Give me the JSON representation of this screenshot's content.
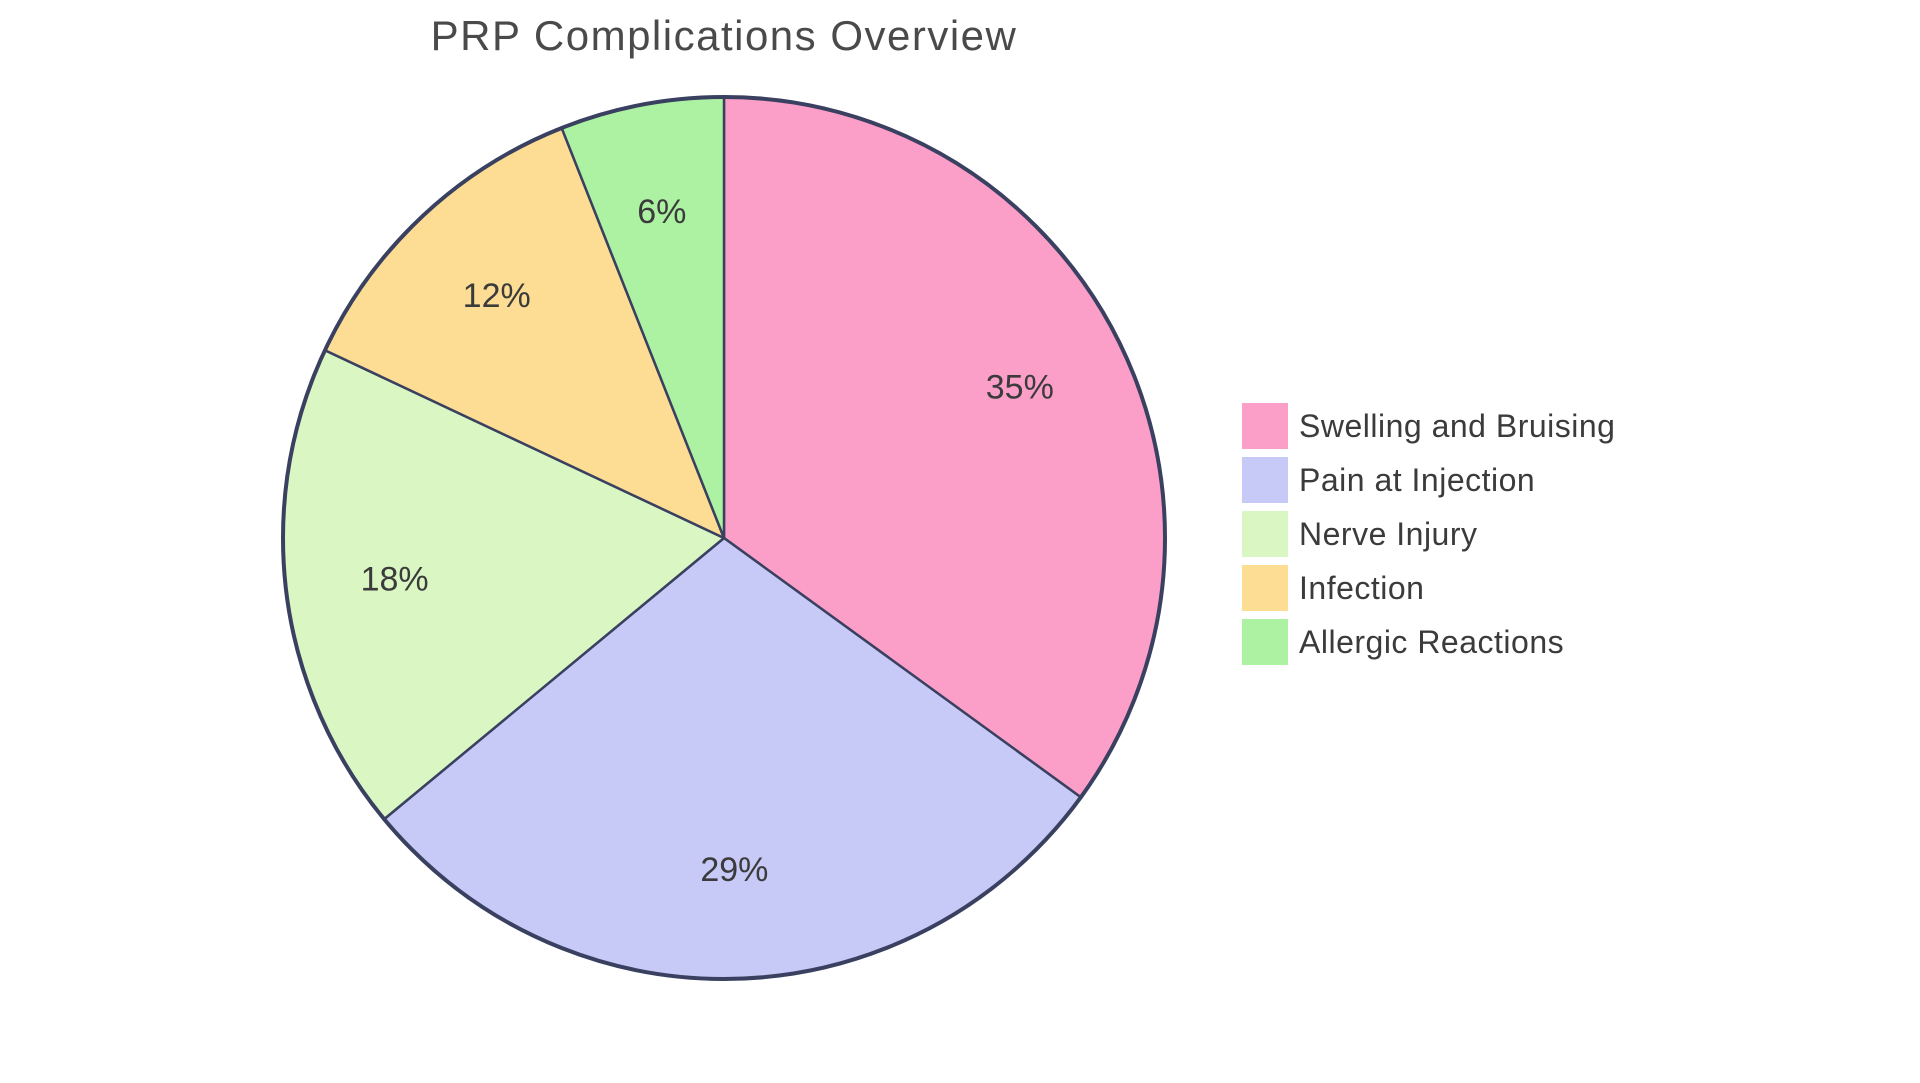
{
  "chart_data": {
    "type": "pie",
    "title": "PRP Complications Overview",
    "direction": "clockwise",
    "start_angle_deg": 0,
    "legend_position": "right",
    "background_color": "#FFFFFF",
    "outline_color": "#3A4060",
    "percent_label_color": "#3B3B3B",
    "title_color": "#4A4A4A",
    "slices": [
      {
        "label": "Swelling and Bruising",
        "value": 35,
        "percent_label": "35%",
        "color": "#FB9FC9"
      },
      {
        "label": "Pain at Injection",
        "value": 29,
        "percent_label": "29%",
        "color": "#C7C9F7"
      },
      {
        "label": "Nerve Injury",
        "value": 18,
        "percent_label": "18%",
        "color": "#DAF7C3"
      },
      {
        "label": "Infection",
        "value": 12,
        "percent_label": "12%",
        "color": "#FDDC94"
      },
      {
        "label": "Allergic Reactions",
        "value": 6,
        "percent_label": "6%",
        "color": "#ACF2A2"
      }
    ]
  }
}
